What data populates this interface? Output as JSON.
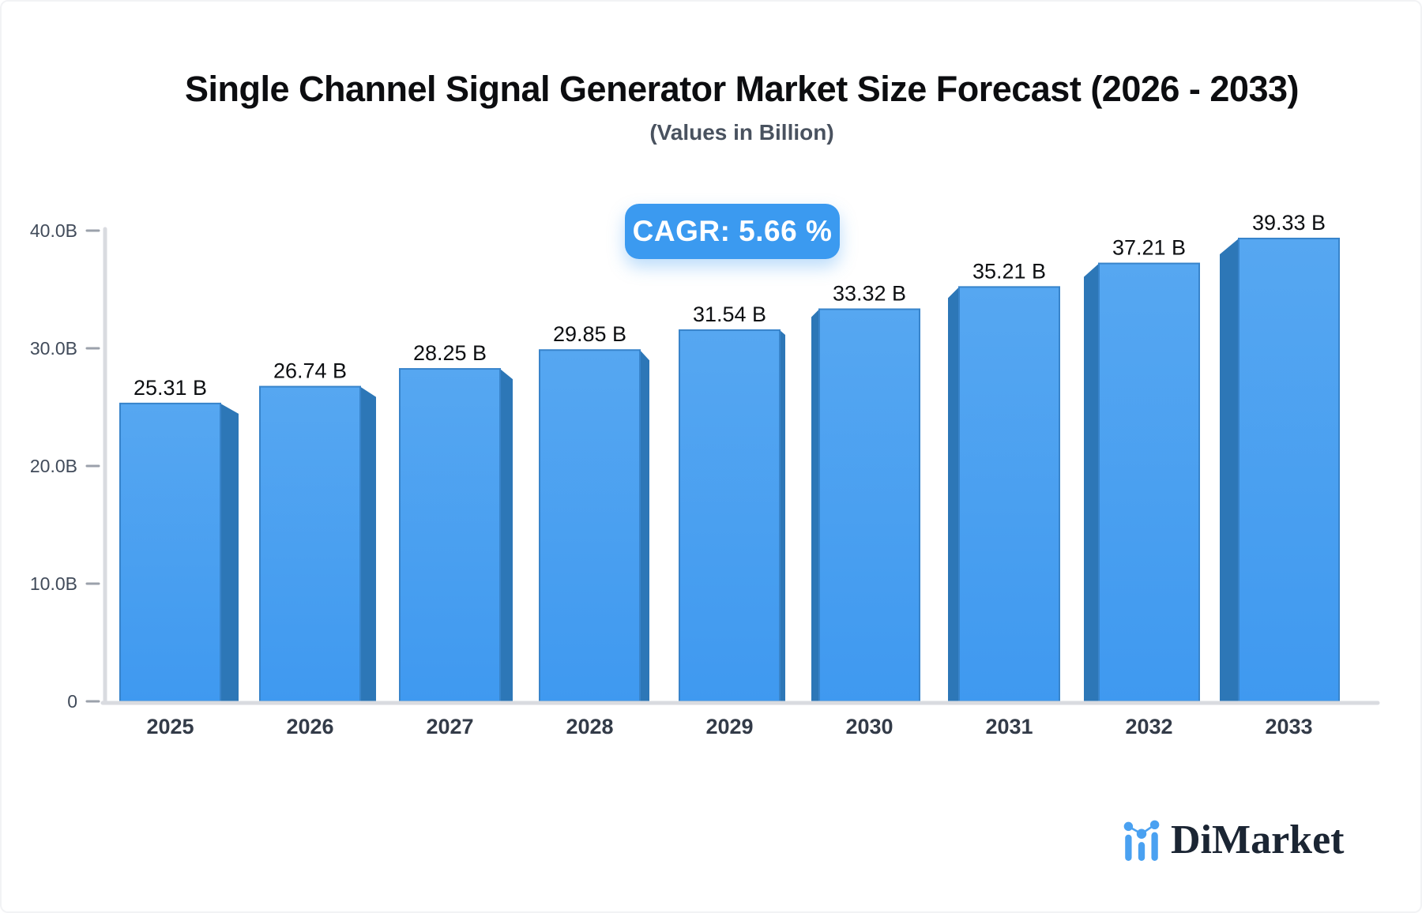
{
  "header": {
    "title": "Single Channel Signal Generator Market Size Forecast (2026 - 2033)",
    "subtitle": "(Values in Billion)"
  },
  "cagr_badge": {
    "label": "CAGR: 5.66 %"
  },
  "chart_data": {
    "type": "bar",
    "title": "Single Channel Signal Generator Market Size Forecast (2026 - 2033)",
    "subtitle": "(Values in Billion)",
    "categories": [
      "2025",
      "2026",
      "2027",
      "2028",
      "2029",
      "2030",
      "2031",
      "2032",
      "2033"
    ],
    "values": [
      25.31,
      26.74,
      28.25,
      29.85,
      31.54,
      33.32,
      35.21,
      37.21,
      39.33
    ],
    "value_labels": [
      "25.31 B",
      "26.74 B",
      "28.25 B",
      "29.85 B",
      "31.54 B",
      "33.32 B",
      "35.21 B",
      "37.21 B",
      "39.33 B"
    ],
    "cagr_label": "CAGR: 5.66 %",
    "xlabel": "",
    "ylabel": "",
    "ylim": [
      0,
      40
    ],
    "grid": false,
    "legend": false,
    "y_ticks": [
      {
        "value": 40,
        "label": "40.0B"
      },
      {
        "value": 30,
        "label": "30.0B"
      },
      {
        "value": 20,
        "label": "20.0B"
      },
      {
        "value": 10,
        "label": "10.0B"
      },
      {
        "value": 0,
        "label": "0"
      }
    ],
    "colors": {
      "bar_face_top": "#56a7f1",
      "bar_face_bottom": "#3f99f0",
      "bar_outline": "#3884cb",
      "bar_side": "#2d77b7",
      "axis_line": "#d9dbe0",
      "tick_mark": "#9ba1ab",
      "y_label": "#414b5a",
      "x_label": "#333b48",
      "value_label": "#0d0f12",
      "badge_blue": "#3b9af0"
    }
  },
  "logo": {
    "text": "DiMarket",
    "icon": "bar-chart-logo-icon",
    "icon_color": "#4aa1f1",
    "text_color": "#1b2533"
  }
}
